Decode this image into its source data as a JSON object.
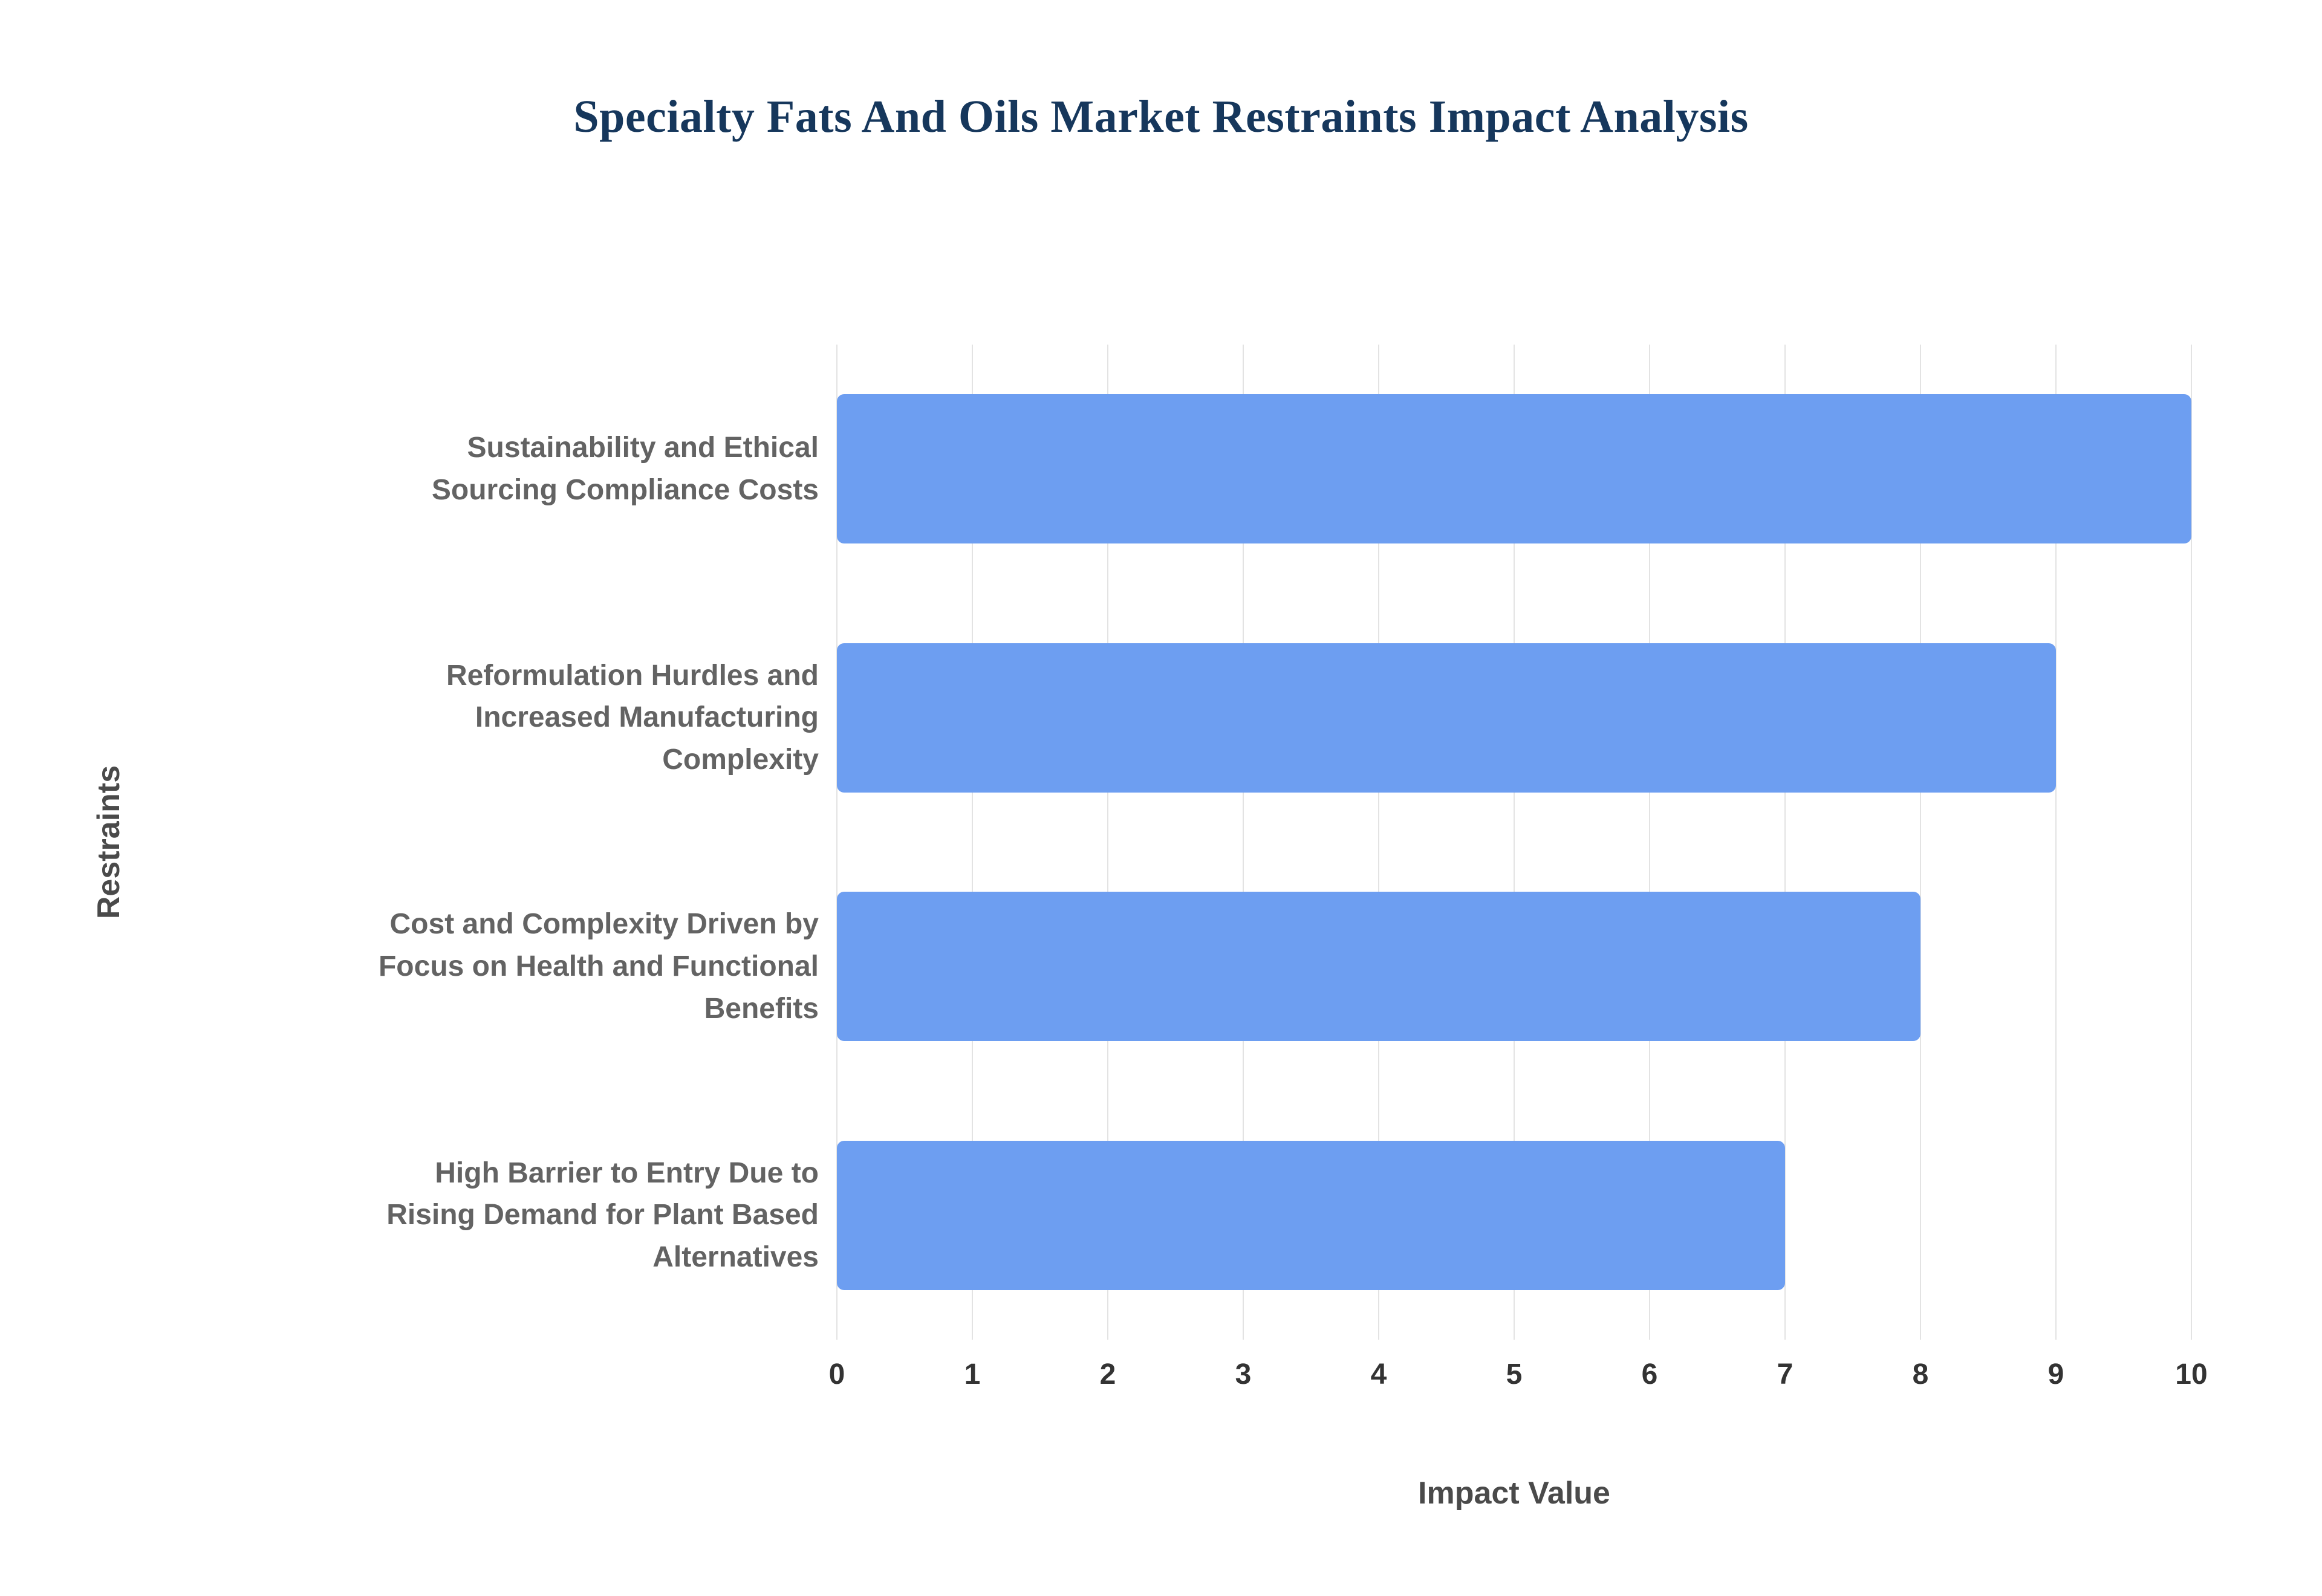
{
  "chart_data": {
    "type": "bar",
    "orientation": "horizontal",
    "title": "Specialty Fats And Oils Market Restraints Impact Analysis",
    "xlabel": "Impact Value",
    "ylabel": "Restraints",
    "categories": [
      "Sustainability and Ethical Sourcing Compliance Costs",
      "Reformulation Hurdles and Increased Manufacturing Complexity",
      "Cost and Complexity Driven by Focus on Health and Functional Benefits",
      "High Barrier to Entry Due to Rising Demand for Plant Based Alternatives"
    ],
    "values": [
      10,
      9,
      8,
      7
    ],
    "xlim": [
      0,
      10
    ],
    "xticks": [
      0,
      1,
      2,
      3,
      4,
      5,
      6,
      7,
      8,
      9,
      10
    ],
    "grid": true,
    "legend": "none",
    "bar_color": "#6D9EF1",
    "title_color": "#16375C",
    "label_color": "#636363",
    "axis_title_color": "#4A4A4A",
    "tick_color": "#333333",
    "gridline_color": "#E3E3E3"
  }
}
